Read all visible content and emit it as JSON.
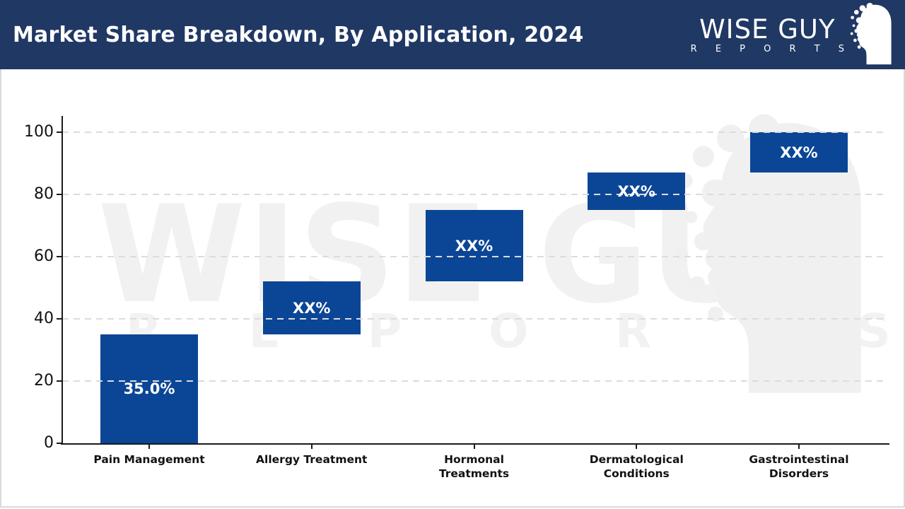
{
  "header": {
    "title": "Market Share Breakdown, By Application, 2024",
    "logo_line1": "WISE GUY",
    "logo_line2": "R E P O R T S"
  },
  "watermark": {
    "line1": "WISE GUY",
    "line2": "R E P O R T S"
  },
  "colors": {
    "header_bg": "#203864",
    "bar": "#0B4696",
    "grid": "#dcdcdc",
    "axis": "#1a1a1a",
    "bar_label_text": "#ffffff",
    "watermark_gray": "#f0f0f0"
  },
  "chart_data": {
    "type": "bar",
    "subtype": "floating-segment waterfall of cumulative market share",
    "title": "Market Share Breakdown, By Application, 2024",
    "categories": [
      "Pain Management",
      "Allergy Treatment",
      "Hormonal Treatments",
      "Dermatological Conditions",
      "Gastrointestinal Disorders"
    ],
    "category_label_lines": [
      [
        "Pain Management"
      ],
      [
        "Allergy Treatment"
      ],
      [
        "Hormonal",
        "Treatments"
      ],
      [
        "Dermatological",
        "Conditions"
      ],
      [
        "Gastrointestinal",
        "Disorders"
      ]
    ],
    "segments": [
      {
        "category": "Pain Management",
        "start": 0,
        "end": 35,
        "label": "35.0%"
      },
      {
        "category": "Allergy Treatment",
        "start": 35,
        "end": 52,
        "label": "XX%"
      },
      {
        "category": "Hormonal Treatments",
        "start": 52,
        "end": 75,
        "label": "XX%"
      },
      {
        "category": "Dermatological Conditions",
        "start": 75,
        "end": 87,
        "label": "XX%"
      },
      {
        "category": "Gastrointestinal Disorders",
        "start": 87,
        "end": 100,
        "label": "XX%"
      }
    ],
    "y_ticks": [
      0,
      20,
      40,
      60,
      80,
      100
    ],
    "ylim": [
      0,
      105
    ],
    "xlabel": "",
    "ylabel": "",
    "grid": "horizontal dashed",
    "legend": "none"
  }
}
